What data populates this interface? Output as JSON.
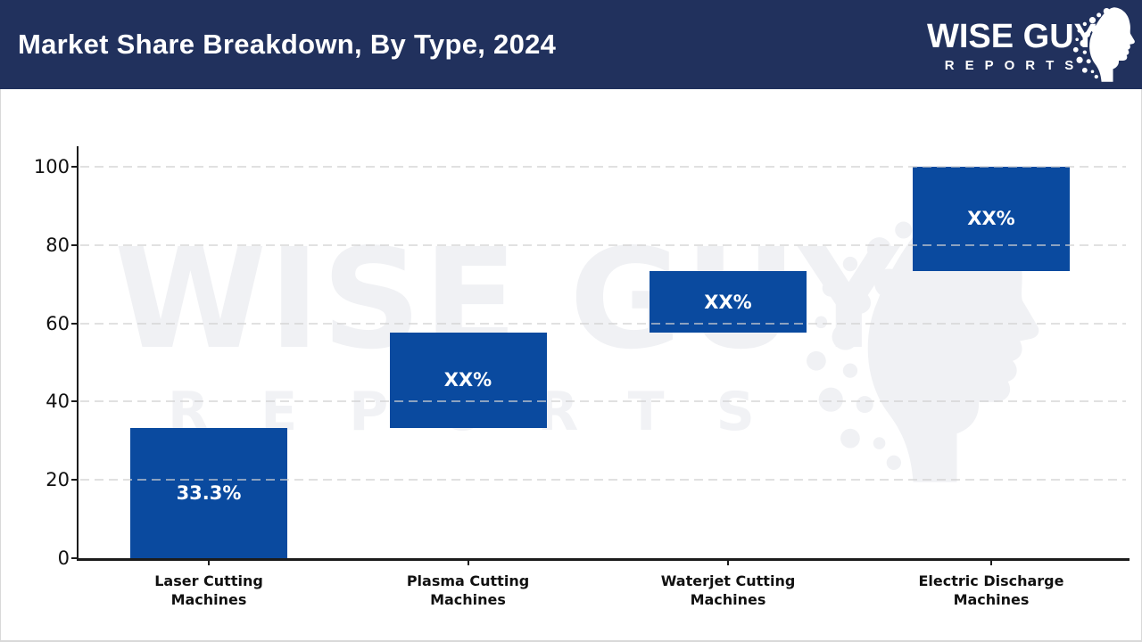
{
  "header": {
    "title": "Market Share Breakdown, By Type, 2024",
    "logo": {
      "line1": "WISE GUY",
      "line2": "REPORTS"
    }
  },
  "watermark": {
    "line1": "WISE GUY",
    "line2": "REPORTS"
  },
  "colors": {
    "header_bg": "#21315d",
    "bar": "#0a4a9f",
    "bar_label": "#ffffff",
    "grid": "#dcdcdc",
    "axis": "#1c1c1c",
    "watermark": "#f0f1f4"
  },
  "chart_data": {
    "type": "bar",
    "subtype": "waterfall-floating-bars",
    "title": "Market Share Breakdown, By Type, 2024",
    "xlabel": "",
    "ylabel": "",
    "ylim": [
      0,
      105
    ],
    "yticks": [
      0,
      20,
      40,
      60,
      80,
      100
    ],
    "grid": "horizontal-dashed",
    "legend": "none",
    "categories": [
      "Laser Cutting Machines",
      "Plasma Cutting Machines",
      "Waterjet Cutting Machines",
      "Electric Discharge Machines"
    ],
    "bars": [
      {
        "category": "Laser Cutting Machines",
        "lines": [
          "Laser Cutting",
          "Machines"
        ],
        "start": 0,
        "end": 33.3,
        "label": "33.3%"
      },
      {
        "category": "Plasma Cutting Machines",
        "lines": [
          "Plasma Cutting",
          "Machines"
        ],
        "start": 33.3,
        "end": 57.6,
        "label": "XX%"
      },
      {
        "category": "Waterjet Cutting Machines",
        "lines": [
          "Waterjet Cutting",
          "Machines"
        ],
        "start": 57.6,
        "end": 73.3,
        "label": "XX%"
      },
      {
        "category": "Electric Discharge Machines",
        "lines": [
          "Electric Discharge",
          "Machines"
        ],
        "start": 73.4,
        "end": 100,
        "label": "XX%"
      }
    ]
  }
}
